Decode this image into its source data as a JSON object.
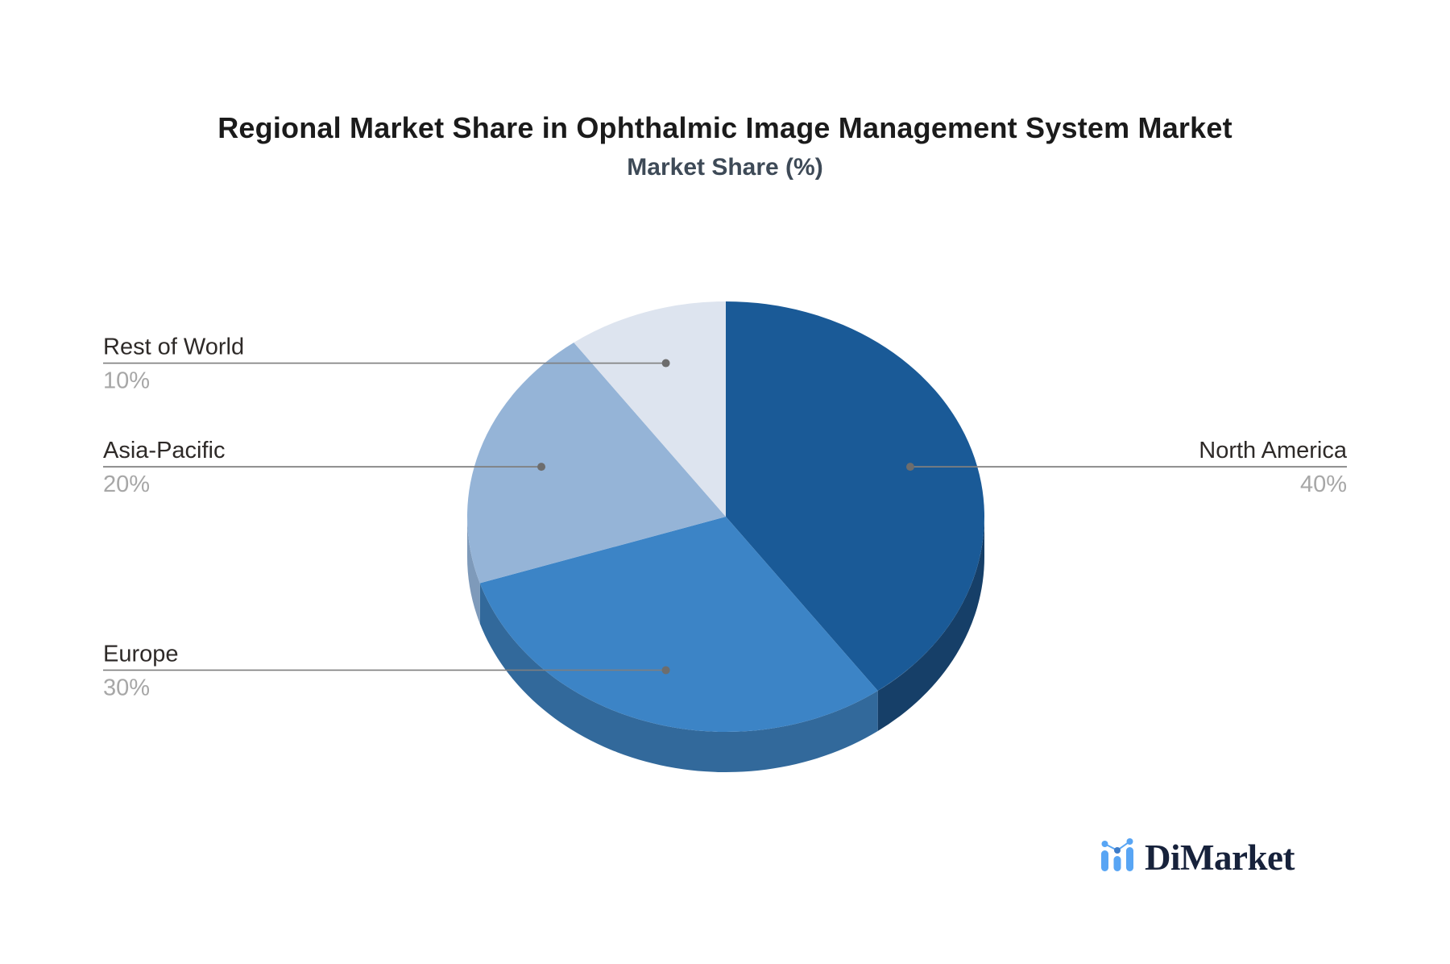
{
  "chart_data": {
    "type": "pie",
    "style": "3d",
    "title": "Regional Market Share in Ophthalmic Image Management System Market",
    "subtitle": "Market Share (%)",
    "unit": "%",
    "labels": [
      "North America",
      "Europe",
      "Asia-Pacific",
      "Rest of World"
    ],
    "values": [
      40,
      30,
      20,
      10
    ],
    "value_labels": [
      "40%",
      "30%",
      "20%",
      "10%"
    ],
    "start_angle_deg": 0,
    "direction": "clockwise",
    "legend_position": "callout-labels",
    "colors_top": [
      "#1A5A97",
      "#3C84C6",
      "#95B4D7",
      "#DDE4EF"
    ],
    "colors_side": [
      "#163F68",
      "#32699B",
      "#7E9ABA",
      "#C2CBDA"
    ],
    "title_color": "#1B1B1B",
    "subtitle_color": "#3E4A57",
    "label_color": "#2E2A28",
    "value_color": "#A7A7A7",
    "leader_line_color": "#7F7F7F",
    "leader_dot_color": "#6D6D6D",
    "background_color": "#FFFFFF"
  },
  "logo": {
    "text": "DiMarket",
    "icon": "bar-line-chart-icon",
    "icon_color": "#58A5F4",
    "icon_accent_color": "#3D7CC9",
    "text_color": "#17223B"
  }
}
